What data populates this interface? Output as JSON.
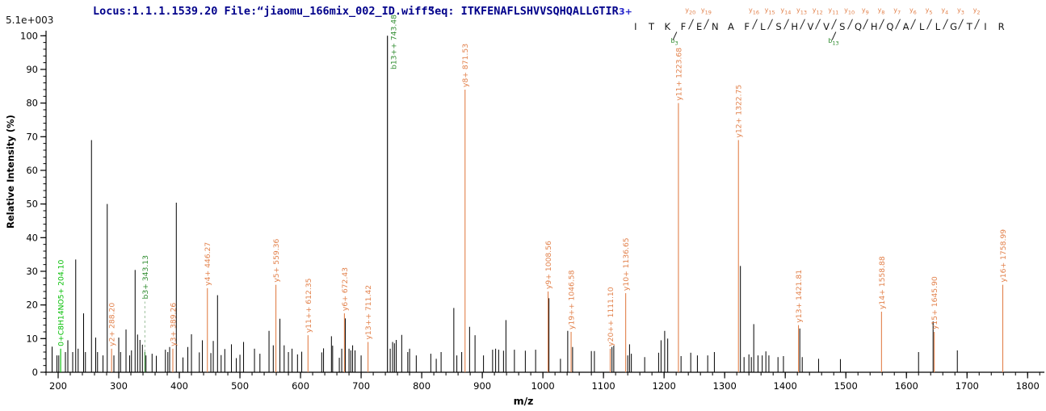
{
  "header": {
    "locus_text": "Locus:1.1.1.1539.20 File:“jiaomu_166mix_002_ID.wiff”",
    "seq_prefix": "Seq:",
    "seq_value": "ITKFENAFLSHVVSQHQALLGTIR",
    "scale_note": "5.1e+003"
  },
  "sequence_panel": {
    "charge": "3+",
    "residues": [
      {
        "aa": "I"
      },
      {
        "aa": "T"
      },
      {
        "aa": "K",
        "b": "b3"
      },
      {
        "aa": "F",
        "y": "y20"
      },
      {
        "aa": "E",
        "y": "y19"
      },
      {
        "aa": "N"
      },
      {
        "aa": "A"
      },
      {
        "aa": "F",
        "y": "y16"
      },
      {
        "aa": "L",
        "y": "y15"
      },
      {
        "aa": "S",
        "y": "y14"
      },
      {
        "aa": "H",
        "y": "y13"
      },
      {
        "aa": "V",
        "y": "y12"
      },
      {
        "aa": "V",
        "y": "y11",
        "b": "b13"
      },
      {
        "aa": "S",
        "y": "y10"
      },
      {
        "aa": "Q",
        "y": "y9"
      },
      {
        "aa": "H",
        "y": "y8"
      },
      {
        "aa": "Q",
        "y": "y7"
      },
      {
        "aa": "A",
        "y": "y6"
      },
      {
        "aa": "L",
        "y": "y5"
      },
      {
        "aa": "L",
        "y": "y4"
      },
      {
        "aa": "G",
        "y": "y3"
      },
      {
        "aa": "T",
        "y": "y2"
      },
      {
        "aa": "I"
      },
      {
        "aa": "R"
      }
    ]
  },
  "chart_data": {
    "type": "bar",
    "title": "MS/MS fragmentation spectrum",
    "xlabel": "m/z",
    "ylabel": "Relative  Intensity (%)",
    "xlim": [
      180,
      1825
    ],
    "ylim": [
      0,
      100
    ],
    "x_major_tick": 100,
    "x_minor_tick": 20,
    "y_major_tick": 10,
    "y_minor_tick": 2,
    "intensity_scale_note": "5.1e+003",
    "colors": {
      "y_ion": "#E2814B",
      "b_ion": "#2E8B2E",
      "immonium": "#00BE00",
      "peak": "#000000",
      "axis": "#000000"
    },
    "annotated_peaks": [
      {
        "label": "0+C8H14NO5+ 204.10",
        "mz": 204.1,
        "pct": 7,
        "type": "immonium"
      },
      {
        "label": "y2+ 288.20",
        "mz": 288.2,
        "pct": 7,
        "type": "y"
      },
      {
        "label": "b3+ 343.13",
        "mz": 343.13,
        "pct": 6,
        "type": "b",
        "dashed": true
      },
      {
        "label": "y3+ 389.26",
        "mz": 389.26,
        "pct": 7,
        "type": "y"
      },
      {
        "label": "y4+ 446.27",
        "mz": 446.27,
        "pct": 25,
        "type": "y"
      },
      {
        "label": "y5+ 559.36",
        "mz": 559.36,
        "pct": 26,
        "type": "y"
      },
      {
        "label": "y11++ 612.35",
        "mz": 612.35,
        "pct": 11,
        "type": "y"
      },
      {
        "label": "y6+ 672.43",
        "mz": 672.43,
        "pct": 17.5,
        "type": "y"
      },
      {
        "label": "y13++ 711.42",
        "mz": 711.42,
        "pct": 9,
        "type": "y"
      },
      {
        "label": "b13++ 743.48",
        "mz": 743.48,
        "pct": 100,
        "type": "b",
        "line": "black",
        "side": true
      },
      {
        "label": "y8+ 871.53",
        "mz": 871.53,
        "pct": 84,
        "type": "y"
      },
      {
        "label": "y9+ 1008.56",
        "mz": 1008.56,
        "pct": 24,
        "type": "y"
      },
      {
        "label": "y19++ 1046.58",
        "mz": 1046.58,
        "pct": 12,
        "type": "y"
      },
      {
        "label": "y20++ 1111.10",
        "mz": 1111.1,
        "pct": 7,
        "type": "y"
      },
      {
        "label": "y10+ 1136.65",
        "mz": 1136.65,
        "pct": 23.5,
        "type": "y"
      },
      {
        "label": "y11+ 1223.68",
        "mz": 1223.68,
        "pct": 80,
        "type": "y"
      },
      {
        "label": "y12+ 1322.75",
        "mz": 1322.75,
        "pct": 69,
        "type": "y"
      },
      {
        "label": "y13+ 1421.81",
        "mz": 1421.81,
        "pct": 14,
        "type": "y"
      },
      {
        "label": "y14+ 1558.88",
        "mz": 1558.88,
        "pct": 18,
        "type": "y"
      },
      {
        "label": "y15+ 1645.90",
        "mz": 1645.9,
        "pct": 12,
        "type": "y"
      },
      {
        "label": "y16+ 1758.99",
        "mz": 1758.99,
        "pct": 26,
        "type": "y"
      }
    ],
    "unlabeled_peaks": [
      [
        190,
        7.6
      ],
      [
        198,
        5
      ],
      [
        201,
        5
      ],
      [
        212,
        6
      ],
      [
        216,
        9.5
      ],
      [
        224,
        6
      ],
      [
        229,
        33.5
      ],
      [
        233,
        7
      ],
      [
        242,
        17.5
      ],
      [
        245,
        6
      ],
      [
        255,
        69
      ],
      [
        262,
        10.3
      ],
      [
        265,
        6
      ],
      [
        274,
        5
      ],
      [
        281,
        50
      ],
      [
        292,
        5
      ],
      [
        300,
        10.3
      ],
      [
        303,
        6
      ],
      [
        312,
        12.7
      ],
      [
        318,
        5
      ],
      [
        321,
        6.5
      ],
      [
        327,
        30.4
      ],
      [
        331,
        11.2
      ],
      [
        335,
        9.6
      ],
      [
        339,
        8.2
      ],
      [
        345,
        5
      ],
      [
        355,
        5.5
      ],
      [
        362,
        4.9
      ],
      [
        377,
        6.7
      ],
      [
        381,
        6
      ],
      [
        384,
        7.5
      ],
      [
        395,
        50.4
      ],
      [
        406,
        4.4
      ],
      [
        414,
        7.5
      ],
      [
        420,
        11.3
      ],
      [
        433,
        5.9
      ],
      [
        438,
        9.5
      ],
      [
        452,
        5.7
      ],
      [
        456,
        9.3
      ],
      [
        463,
        22.9
      ],
      [
        469,
        5.1
      ],
      [
        475,
        6.9
      ],
      [
        486,
        8.3
      ],
      [
        494,
        4.2
      ],
      [
        500,
        5.2
      ],
      [
        506,
        9
      ],
      [
        524,
        7
      ],
      [
        533,
        5.5
      ],
      [
        548,
        12.3
      ],
      [
        555,
        8
      ],
      [
        566,
        15.9
      ],
      [
        573,
        8
      ],
      [
        580,
        6
      ],
      [
        586,
        7
      ],
      [
        595,
        5.3
      ],
      [
        602,
        6.1
      ],
      [
        635,
        5.9
      ],
      [
        638,
        7.1
      ],
      [
        651,
        10.7
      ],
      [
        653,
        7.9
      ],
      [
        664,
        4.3
      ],
      [
        668,
        7
      ],
      [
        674,
        16
      ],
      [
        680,
        7
      ],
      [
        683,
        6.5
      ],
      [
        686,
        8
      ],
      [
        690,
        6.5
      ],
      [
        700,
        5
      ],
      [
        748,
        7
      ],
      [
        752,
        9
      ],
      [
        755,
        8.6
      ],
      [
        758,
        9.6
      ],
      [
        767,
        11.1
      ],
      [
        777,
        6
      ],
      [
        780,
        7
      ],
      [
        791,
        5
      ],
      [
        815,
        5.5
      ],
      [
        824,
        4
      ],
      [
        832,
        6
      ],
      [
        853,
        19.1
      ],
      [
        858,
        5
      ],
      [
        866,
        6
      ],
      [
        879,
        13.5
      ],
      [
        888,
        11
      ],
      [
        902,
        5
      ],
      [
        917,
        6.7
      ],
      [
        922,
        7
      ],
      [
        927,
        6.7
      ],
      [
        935,
        6.4
      ],
      [
        939,
        15.5
      ],
      [
        953,
        6.7
      ],
      [
        971,
        6.4
      ],
      [
        988,
        6.7
      ],
      [
        1010,
        22
      ],
      [
        1029,
        4
      ],
      [
        1041,
        12.3
      ],
      [
        1049,
        7.5
      ],
      [
        1080,
        6.3
      ],
      [
        1085,
        6.3
      ],
      [
        1114,
        7.5
      ],
      [
        1117,
        7.9
      ],
      [
        1140,
        5
      ],
      [
        1143,
        8.3
      ],
      [
        1146,
        5.5
      ],
      [
        1168,
        4.5
      ],
      [
        1191,
        5.8
      ],
      [
        1195,
        9.5
      ],
      [
        1201,
        12.3
      ],
      [
        1206,
        10
      ],
      [
        1228,
        4.8
      ],
      [
        1244,
        5.8
      ],
      [
        1255,
        5
      ],
      [
        1272,
        5
      ],
      [
        1283,
        6
      ],
      [
        1326,
        31.6
      ],
      [
        1332,
        4.5
      ],
      [
        1340,
        5.3
      ],
      [
        1344,
        4.5
      ],
      [
        1348,
        14.3
      ],
      [
        1355,
        5
      ],
      [
        1362,
        5
      ],
      [
        1368,
        6.2
      ],
      [
        1373,
        5
      ],
      [
        1388,
        4.5
      ],
      [
        1397,
        4.8
      ],
      [
        1424,
        13
      ],
      [
        1428,
        4.5
      ],
      [
        1455,
        4
      ],
      [
        1491,
        3.9
      ],
      [
        1620,
        6
      ],
      [
        1644,
        15.1
      ],
      [
        1684,
        6.5
      ]
    ]
  }
}
